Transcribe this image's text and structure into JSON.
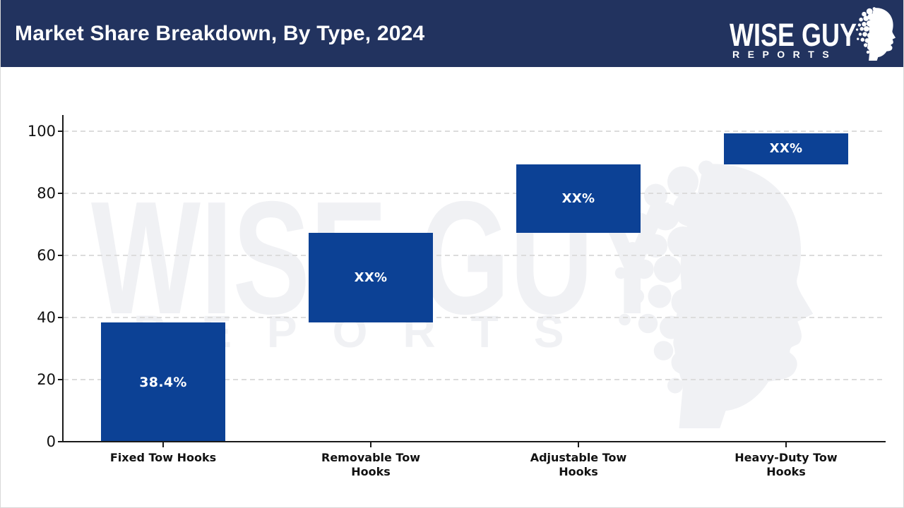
{
  "header": {
    "logo": {
      "line1": "WISE GUY",
      "line2": "REPORTS"
    }
  },
  "watermark": {
    "line1": "WISE GUY",
    "line2": "REPORTS"
  },
  "chart_data": {
    "type": "bar",
    "subtype": "waterfall",
    "title": "Market Share Breakdown, By Type, 2024",
    "xlabel": "",
    "ylabel": "",
    "ylim": [
      0,
      105
    ],
    "yticks": [
      0,
      20,
      40,
      60,
      80,
      100
    ],
    "grid": true,
    "bar_color": "#0c4195",
    "categories": [
      "Fixed Tow Hooks",
      "Removable Tow Hooks",
      "Adjustable Tow Hooks",
      "Heavy-Duty Tow Hooks"
    ],
    "segments": [
      {
        "category": "Fixed Tow Hooks",
        "lines": [
          "Fixed Tow Hooks"
        ],
        "label": "38.4%",
        "start": 0,
        "end": 38.4
      },
      {
        "category": "Removable Tow Hooks",
        "lines": [
          "Removable Tow",
          "Hooks"
        ],
        "label": "XX%",
        "start": 38.4,
        "end": 67.2
      },
      {
        "category": "Adjustable Tow Hooks",
        "lines": [
          "Adjustable Tow",
          "Hooks"
        ],
        "label": "XX%",
        "start": 67.2,
        "end": 89.4
      },
      {
        "category": "Heavy-Duty Tow Hooks",
        "lines": [
          "Heavy-Duty Tow",
          "Hooks"
        ],
        "label": "XX%",
        "start": 89.4,
        "end": 99.4
      }
    ]
  }
}
